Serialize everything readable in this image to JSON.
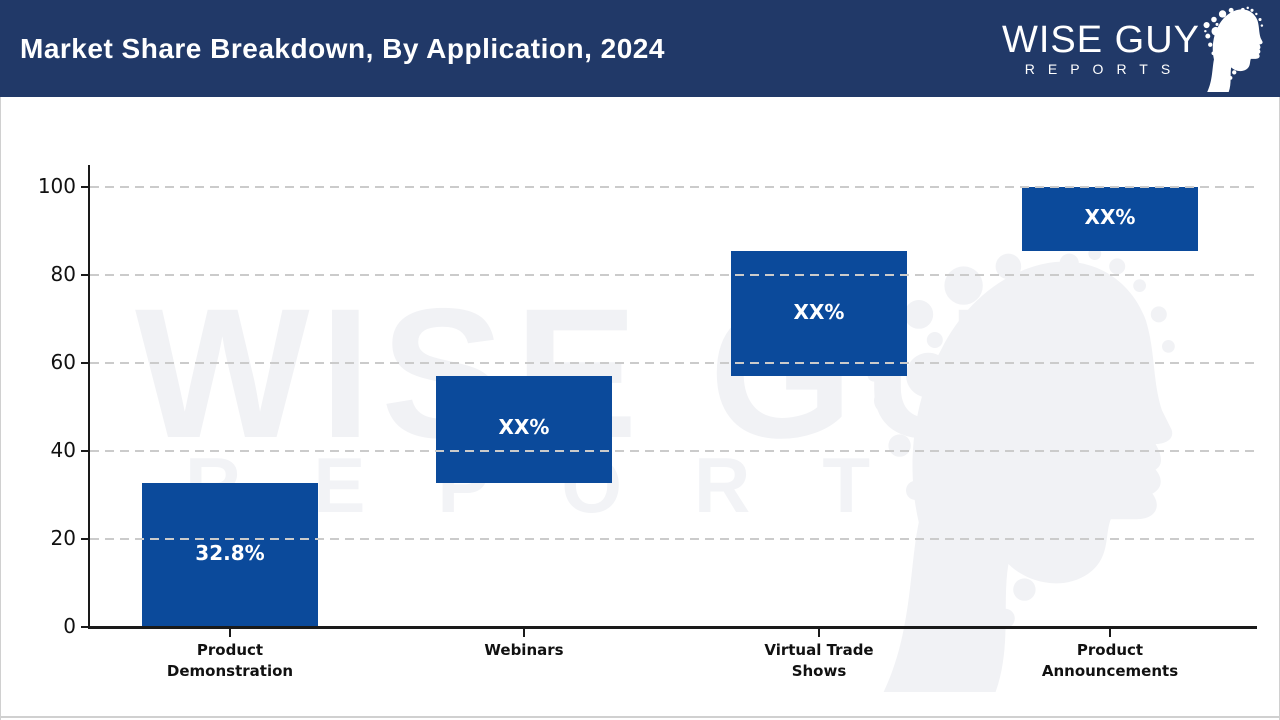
{
  "header": {
    "title": "Market Share Breakdown, By Application, 2024"
  },
  "logo": {
    "name": "WISE GUY",
    "subtitle": "REPORTS"
  },
  "watermark": {
    "name": "WISE GUY",
    "subtitle": "REPORTS"
  },
  "colors": {
    "header_bg": "#213968",
    "bar_blue": "#0b4a9b",
    "bar_label": "#ffffff",
    "gridline": "#cbcbcb",
    "axis": "#1a1a1a",
    "watermark": "#f1f2f5"
  },
  "chart_data": {
    "type": "bar",
    "subtype": "waterfall",
    "title": "Market Share Breakdown, By Application, 2024",
    "categories": [
      "Product\nDemonstration",
      "Webinars",
      "Virtual Trade\nShows",
      "Product\nAnnouncements"
    ],
    "series": [
      {
        "name": "Market Share",
        "segments": [
          {
            "category": "Product Demonstration",
            "start": 0,
            "end": 32.8,
            "label": "32.8%"
          },
          {
            "category": "Webinars",
            "start": 32.8,
            "end": 57,
            "label": "XX%"
          },
          {
            "category": "Virtual Trade Shows",
            "start": 57,
            "end": 85.5,
            "label": "XX%"
          },
          {
            "category": "Product Announcements",
            "start": 85.5,
            "end": 100,
            "label": "XX%"
          }
        ]
      }
    ],
    "ylabel": "",
    "xlabel": "",
    "ylim": [
      0,
      105
    ],
    "yticks": [
      0,
      20,
      40,
      60,
      80,
      100
    ],
    "grid": "horizontal-dashed",
    "legend": "none"
  }
}
